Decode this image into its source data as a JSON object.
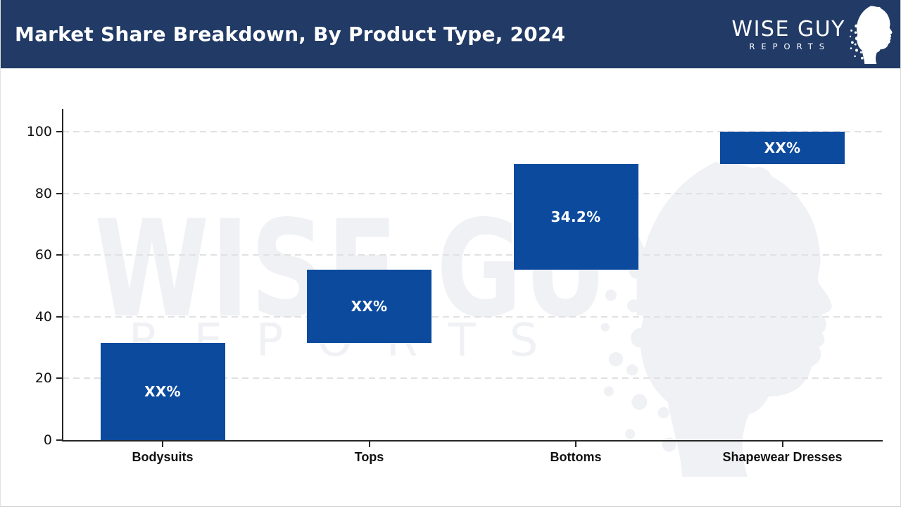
{
  "header": {
    "title": "Market Share Breakdown, By Product Type, 2024",
    "logo": {
      "line1": "WISE GUY",
      "line2": "REPORTS"
    }
  },
  "watermark": {
    "line1": "WISE GUY",
    "line2": "REPORTS"
  },
  "chart_data": {
    "type": "bar",
    "subtype": "waterfall",
    "title": "Market Share Breakdown, By Product Type, 2024",
    "categories": [
      "Bodysuits",
      "Tops",
      "Bottoms",
      "Shapewear Dresses"
    ],
    "segments": [
      {
        "category": "Bodysuits",
        "start": 0,
        "end": 31.5,
        "value": 31.5,
        "label": "XX%"
      },
      {
        "category": "Tops",
        "start": 31.5,
        "end": 55.2,
        "value": 23.7,
        "label": "XX%"
      },
      {
        "category": "Bottoms",
        "start": 55.2,
        "end": 89.4,
        "value": 34.2,
        "label": "34.2%"
      },
      {
        "category": "Shapewear Dresses",
        "start": 89.4,
        "end": 100,
        "value": 10.6,
        "label": "XX%"
      }
    ],
    "yticks": [
      0,
      20,
      40,
      60,
      80,
      100
    ],
    "ylim": [
      0,
      107
    ],
    "xlabel": "",
    "ylabel": "",
    "grid": "horizontal-dashed",
    "legend": "none",
    "bar_color": "#0c4a9e",
    "label_color": "#ffffff",
    "axis_color": "#262626",
    "grid_color": "#e1e1e3",
    "header_color": "#213a66",
    "watermark_color": "#f0f1f4"
  }
}
